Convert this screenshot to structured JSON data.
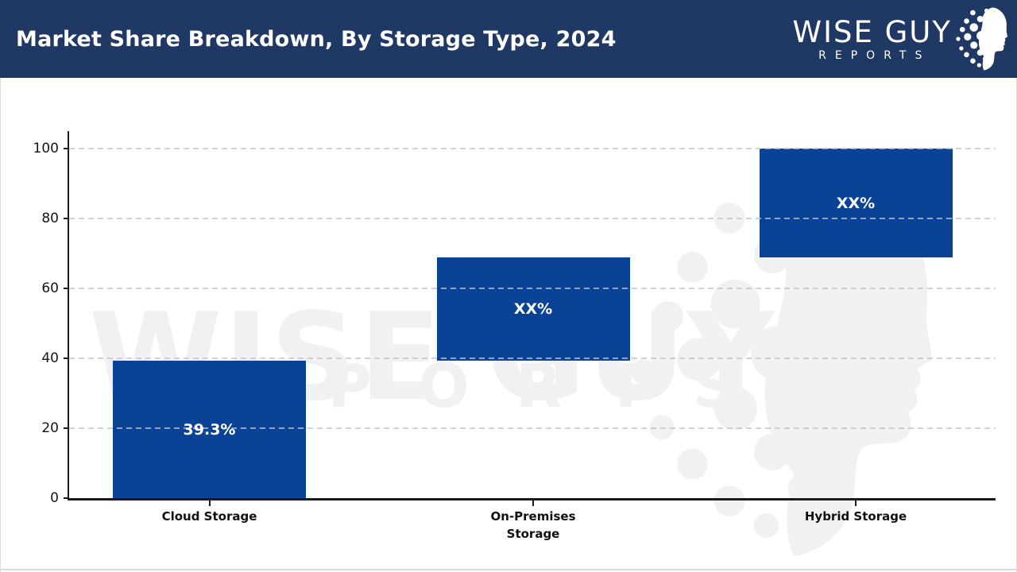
{
  "header": {
    "title": "Market Share Breakdown, By Storage Type, 2024",
    "logo": {
      "line1": "WISE GUY",
      "line2": "REPORTS"
    }
  },
  "watermark": {
    "line1": "WISE GUY",
    "line2": "REPORTS"
  },
  "chart_data": {
    "type": "bar",
    "subtype": "floating-waterfall-segments",
    "title": "Market Share Breakdown, By Storage Type, 2024",
    "categories": [
      "Cloud Storage",
      "On-Premises Storage",
      "Hybrid Storage"
    ],
    "categories_display": [
      "Cloud Storage",
      "On-Premises\nStorage",
      "Hybrid Storage"
    ],
    "segments": [
      {
        "category": "Cloud Storage",
        "start": 0,
        "end": 39.3,
        "label": "39.3%"
      },
      {
        "category": "On-Premises Storage",
        "start": 39.3,
        "end": 68.8,
        "label": "XX%"
      },
      {
        "category": "Hybrid Storage",
        "start": 68.8,
        "end": 100,
        "label": "XX%"
      }
    ],
    "xlabel": "",
    "ylabel": "",
    "ylim": [
      0,
      100
    ],
    "yticks": [
      0,
      20,
      40,
      60,
      80,
      100
    ],
    "grid": "horizontal-dashed",
    "grid_over_bars": true,
    "legend": "none",
    "bar_color": "#0A4396",
    "bar_label_color": "#FFFFFF"
  },
  "colors": {
    "header_bg": "#1F3864",
    "bar": "#0A4396",
    "gridline": "#D9D9D9",
    "axis": "#1A1A1A",
    "watermark": "#F1F1F3",
    "title_text": "#FFFFFF"
  }
}
